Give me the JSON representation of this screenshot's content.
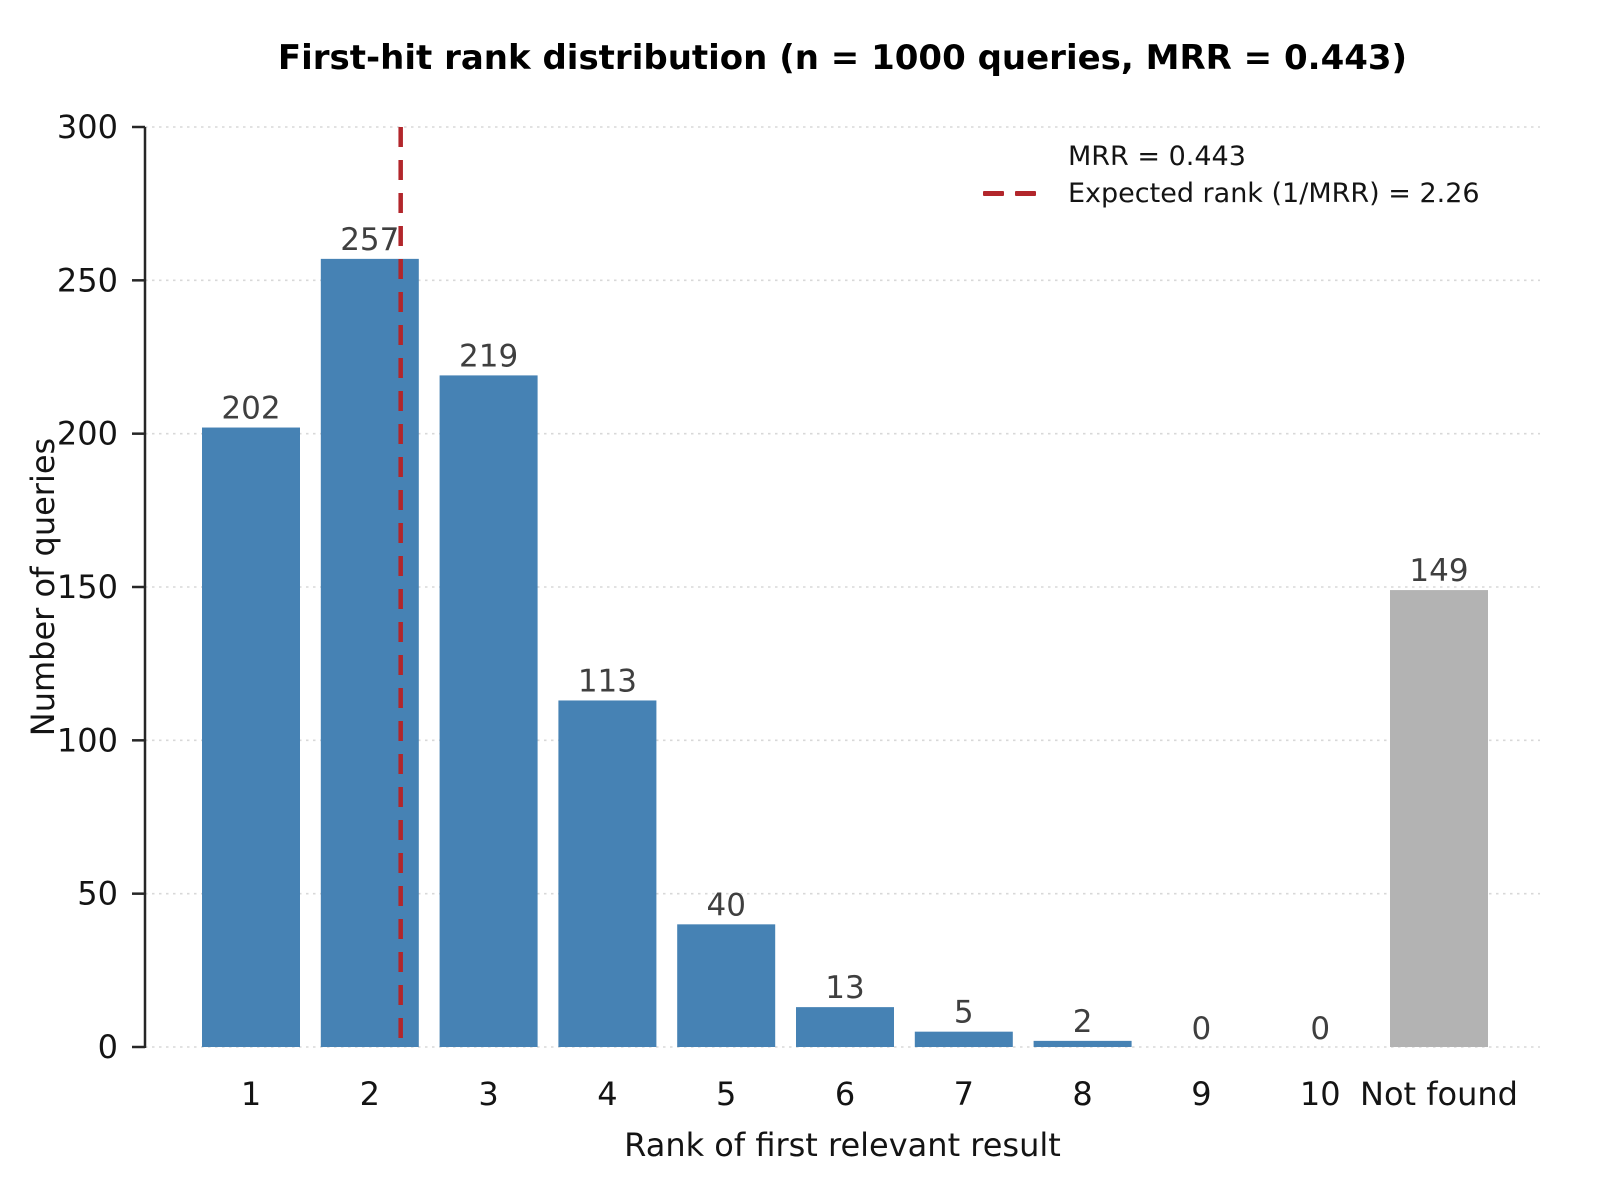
{
  "chart_data": {
    "type": "bar",
    "title": "First-hit rank distribution (n = 1000 queries, MRR = 0.443)",
    "xlabel": "Rank of first relevant result",
    "ylabel": "Number of queries",
    "categories": [
      "1",
      "2",
      "3",
      "4",
      "5",
      "6",
      "7",
      "8",
      "9",
      "10",
      "Not found"
    ],
    "values": [
      202,
      257,
      219,
      113,
      40,
      13,
      5,
      2,
      0,
      0,
      149
    ],
    "bar_colors": [
      "#4682b4",
      "#4682b4",
      "#4682b4",
      "#4682b4",
      "#4682b4",
      "#4682b4",
      "#4682b4",
      "#4682b4",
      "#4682b4",
      "#4682b4",
      "#b3b3b3"
    ],
    "ylim": [
      0,
      300
    ],
    "yticks": [
      0,
      50,
      100,
      150,
      200,
      250,
      300
    ],
    "grid": "horizontal-dotted",
    "grid_color": "#d8d8d8",
    "spine_color": "#262626",
    "tick_label_color": "#141414",
    "value_label_color": "#3f3f3f",
    "mrr": 0.443,
    "expected_rank": 2.26,
    "vline": {
      "x_category": 2.26,
      "color": "#b2262b",
      "style": "dashed"
    },
    "legend": {
      "position": "upper-right",
      "items": [
        {
          "label": "MRR = 0.443",
          "swatch": "none"
        },
        {
          "label": "Expected rank (1/MRR) = 2.26",
          "swatch": "red-dashed-line"
        }
      ]
    }
  }
}
